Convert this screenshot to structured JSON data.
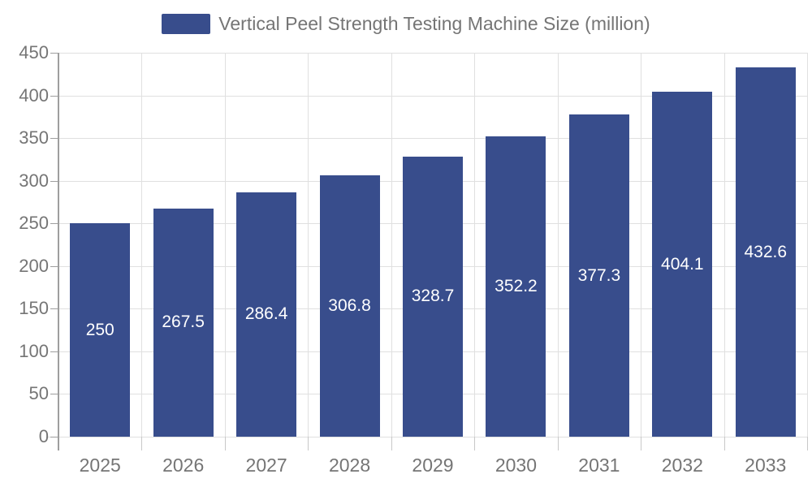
{
  "chart_data": {
    "type": "bar",
    "title": "Vertical Peel Strength Testing Machine Size (million)",
    "xlabel": "",
    "ylabel": "",
    "categories": [
      "2025",
      "2026",
      "2027",
      "2028",
      "2029",
      "2030",
      "2031",
      "2032",
      "2033"
    ],
    "values": [
      250,
      267.5,
      286.4,
      306.8,
      328.7,
      352.2,
      377.3,
      404.1,
      432.6
    ],
    "value_labels": [
      "250",
      "267.5",
      "286.4",
      "306.8",
      "328.7",
      "352.2",
      "377.3",
      "404.1",
      "432.6"
    ],
    "ylim": [
      0,
      450
    ],
    "ytick_step": 50,
    "grid": "horizontal and vertical light gridlines",
    "legend": {
      "label": "Vertical Peel Strength Testing Machine Size (million)",
      "position": "top-center"
    },
    "colors": {
      "bar": "#384D8C",
      "value_text": "#FFFFFF",
      "label_text": "#757575",
      "gridline": "#E0E0E0",
      "axis_line": "#9E9E9E",
      "tick_line": "#C8C8C8",
      "background": "#FFFFFF"
    }
  }
}
